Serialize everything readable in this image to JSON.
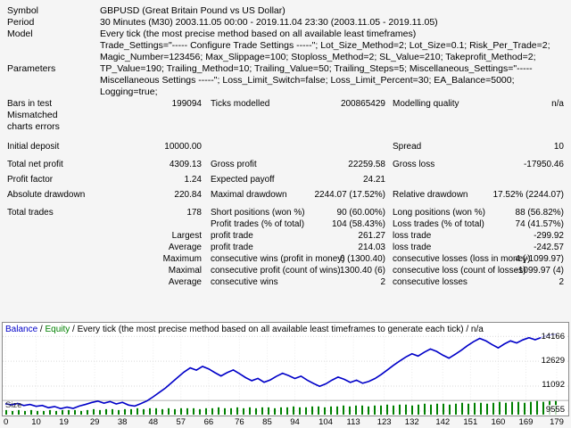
{
  "report": {
    "rows": [
      {
        "type": "simple",
        "label": "Symbol",
        "value": "GBPUSD (Great Britain Pound vs US Dollar)"
      },
      {
        "type": "simple",
        "label": "Period",
        "value": "30 Minutes (M30) 2003.11.05 00:00 - 2019.11.04 23:30 (2003.11.05 - 2019.11.05)"
      },
      {
        "type": "simple",
        "label": "Model",
        "value": "Every tick (the most precise method based on all available least timeframes)"
      },
      {
        "type": "simple",
        "label": "Parameters",
        "value": "Trade_Settings=\"----- Configure Trade Settings -----\"; Lot_Size_Method=2; Lot_Size=0.1; Risk_Per_Trade=2; Magic_Number=123456; Max_Slippage=100; Stoploss_Method=2; SL_Value=210; Takeprofit_Method=2; TP_Value=190; Trailing_Method=10; Trailing_Value=50; Trailing_Steps=5; Miscellaneous_Settings=\"----- Miscellaneous Settings -----\"; Loss_Limit_Switch=false; Loss_Limit_Percent=30; EA_Balance=5000; Logging=true;"
      },
      {
        "type": "stats",
        "cells": [
          "Bars in test",
          "199094",
          "Ticks modelled",
          "200865429",
          "Modelling quality",
          "n/a"
        ]
      },
      {
        "type": "simple",
        "narrow": true,
        "label": "Mismatched charts errors",
        "value": ""
      },
      {
        "type": "stats",
        "gap": 9,
        "cells": [
          "Initial deposit",
          "10000.00",
          "",
          "",
          "Spread",
          "10"
        ]
      },
      {
        "type": "stats",
        "gap": 7,
        "cells": [
          "Total net profit",
          "4309.13",
          "Gross profit",
          "22259.58",
          "Gross loss",
          "-17950.46"
        ]
      },
      {
        "type": "stats",
        "gap": 4,
        "cells": [
          "Profit factor",
          "1.24",
          "Expected payoff",
          "24.21",
          "",
          ""
        ]
      },
      {
        "type": "stats",
        "gap": 4,
        "cells": [
          "Absolute drawdown",
          "220.84",
          "Maximal drawdown",
          "2244.07 (17.52%)",
          "Relative drawdown",
          "17.52% (2244.07)"
        ]
      },
      {
        "type": "stats",
        "gap": 7,
        "cells": [
          "Total trades",
          "178",
          "Short positions (won %)",
          "90 (60.00%)",
          "Long positions (won %)",
          "88 (56.82%)"
        ]
      },
      {
        "type": "stats",
        "cells": [
          "",
          "",
          "Profit trades (% of total)",
          "104 (58.43%)",
          "Loss trades (% of total)",
          "74 (41.57%)"
        ]
      },
      {
        "type": "stats",
        "cells": [
          "",
          "Largest",
          "profit trade",
          "261.27",
          "loss trade",
          "-299.92"
        ]
      },
      {
        "type": "stats",
        "cells": [
          "",
          "Average",
          "profit trade",
          "214.03",
          "loss trade",
          "-242.57"
        ]
      },
      {
        "type": "stats",
        "cells": [
          "",
          "Maximum",
          "consecutive wins (profit in money)",
          "6 (1300.40)",
          "consecutive losses (loss in money)",
          "4 (-1099.97)"
        ]
      },
      {
        "type": "stats",
        "cells": [
          "",
          "Maximal",
          "consecutive profit (count of wins)",
          "1300.40 (6)",
          "consecutive loss (count of losses)",
          "-1099.97 (4)"
        ]
      },
      {
        "type": "stats",
        "cells": [
          "",
          "Average",
          "consecutive wins",
          "2",
          "consecutive losses",
          "2"
        ]
      }
    ]
  },
  "chart_data": {
    "type": "line",
    "legend": {
      "balance": "Balance",
      "sep1": " / ",
      "equity": "Equity",
      "rest": " / Every tick (the most precise method based on all available least timeframes to generate each tick) / n/a"
    },
    "size_label": "Size",
    "y_ticks": [
      14166,
      12629,
      11092,
      9555
    ],
    "x_ticks": [
      0,
      10,
      19,
      29,
      38,
      48,
      57,
      66,
      76,
      85,
      94,
      104,
      113,
      123,
      132,
      142,
      151,
      160,
      169,
      179
    ],
    "x_max": 179,
    "ylabel": "",
    "xlabel": "",
    "balance_series": [
      [
        0,
        10000
      ],
      [
        2,
        9930
      ],
      [
        4,
        10020
      ],
      [
        6,
        9890
      ],
      [
        8,
        9960
      ],
      [
        10,
        9840
      ],
      [
        12,
        9900
      ],
      [
        14,
        9760
      ],
      [
        16,
        9830
      ],
      [
        18,
        9700
      ],
      [
        20,
        9790
      ],
      [
        22,
        9710
      ],
      [
        24,
        9860
      ],
      [
        26,
        9960
      ],
      [
        28,
        10080
      ],
      [
        30,
        10170
      ],
      [
        32,
        10040
      ],
      [
        34,
        10140
      ],
      [
        36,
        9990
      ],
      [
        38,
        10090
      ],
      [
        40,
        9920
      ],
      [
        42,
        9860
      ],
      [
        44,
        10010
      ],
      [
        46,
        10180
      ],
      [
        48,
        10430
      ],
      [
        50,
        10700
      ],
      [
        52,
        10980
      ],
      [
        54,
        11310
      ],
      [
        56,
        11640
      ],
      [
        58,
        11960
      ],
      [
        60,
        12220
      ],
      [
        62,
        12080
      ],
      [
        64,
        12310
      ],
      [
        66,
        12160
      ],
      [
        68,
        11930
      ],
      [
        70,
        11720
      ],
      [
        72,
        11930
      ],
      [
        74,
        12090
      ],
      [
        76,
        11860
      ],
      [
        78,
        11620
      ],
      [
        80,
        11430
      ],
      [
        82,
        11570
      ],
      [
        84,
        11330
      ],
      [
        86,
        11470
      ],
      [
        88,
        11700
      ],
      [
        90,
        11890
      ],
      [
        92,
        11740
      ],
      [
        94,
        11560
      ],
      [
        96,
        11710
      ],
      [
        98,
        11460
      ],
      [
        100,
        11260
      ],
      [
        102,
        11080
      ],
      [
        104,
        11230
      ],
      [
        106,
        11460
      ],
      [
        108,
        11650
      ],
      [
        110,
        11510
      ],
      [
        112,
        11320
      ],
      [
        114,
        11460
      ],
      [
        116,
        11270
      ],
      [
        118,
        11380
      ],
      [
        120,
        11560
      ],
      [
        122,
        11810
      ],
      [
        124,
        12090
      ],
      [
        126,
        12380
      ],
      [
        128,
        12640
      ],
      [
        130,
        12890
      ],
      [
        132,
        13090
      ],
      [
        134,
        12950
      ],
      [
        136,
        13190
      ],
      [
        138,
        13390
      ],
      [
        140,
        13240
      ],
      [
        142,
        13010
      ],
      [
        144,
        12820
      ],
      [
        146,
        13060
      ],
      [
        148,
        13310
      ],
      [
        150,
        13590
      ],
      [
        152,
        13840
      ],
      [
        154,
        14040
      ],
      [
        156,
        13890
      ],
      [
        158,
        13660
      ],
      [
        160,
        13460
      ],
      [
        162,
        13700
      ],
      [
        164,
        13890
      ],
      [
        166,
        13760
      ],
      [
        168,
        13950
      ],
      [
        170,
        14090
      ],
      [
        172,
        13960
      ],
      [
        174,
        14100
      ],
      [
        176,
        14240
      ],
      [
        179,
        14309
      ]
    ],
    "size_bars": [
      5,
      4,
      5,
      4,
      5,
      4,
      4,
      5,
      4,
      5,
      5,
      5,
      4,
      5,
      6,
      5,
      6,
      6,
      5,
      6,
      6,
      7,
      6,
      7,
      7,
      6,
      7,
      6,
      7,
      7,
      7,
      6,
      7,
      7,
      8,
      7,
      7,
      8,
      7,
      8,
      7,
      8,
      8,
      7,
      8,
      8,
      9,
      8,
      8,
      9,
      9,
      8,
      9,
      9,
      10,
      9,
      10,
      10,
      9,
      10,
      10,
      11,
      10,
      11,
      11,
      10,
      11,
      12,
      11,
      12,
      12,
      11,
      12,
      13,
      12,
      13,
      13,
      12,
      13,
      14,
      13,
      14,
      14,
      13,
      14,
      15,
      14,
      15,
      15
    ],
    "colors": {
      "balance_line": "#0000c8",
      "equity_line": "#008000",
      "size_bars": "#008000",
      "grid": "#d9d9d9"
    }
  }
}
